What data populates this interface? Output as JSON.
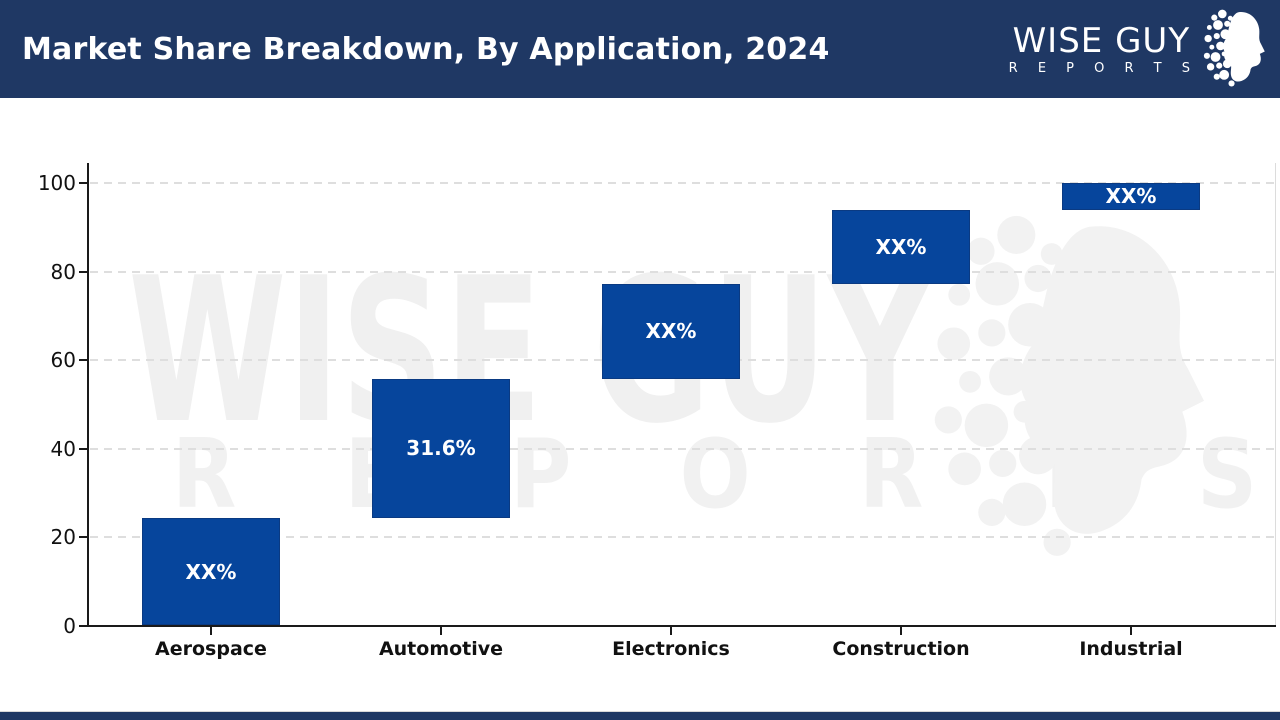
{
  "header": {
    "title": "Market Share Breakdown, By Application, 2024",
    "bg_color": "#1f3864",
    "logo": {
      "line1": "WISE GUY",
      "line2": "R E P O R T S"
    }
  },
  "watermark": {
    "line1": "WISE GUY",
    "line2": "R E P O R T S"
  },
  "chart_data": {
    "type": "bar",
    "subtype": "waterfall",
    "title": "Market Share Breakdown, By Application, 2024",
    "categories": [
      "Aerospace",
      "Automotive",
      "Electronics",
      "Construction",
      "Industrial"
    ],
    "segments": [
      {
        "category": "Aerospace",
        "start": 0,
        "end": 24.2,
        "value": 24.2,
        "displayed_label": "XX%"
      },
      {
        "category": "Automotive",
        "start": 24.2,
        "end": 55.8,
        "value": 31.6,
        "displayed_label": "31.6%"
      },
      {
        "category": "Electronics",
        "start": 55.8,
        "end": 77.2,
        "value": 21.4,
        "displayed_label": "XX%"
      },
      {
        "category": "Construction",
        "start": 77.2,
        "end": 93.9,
        "value": 16.7,
        "displayed_label": "XX%"
      },
      {
        "category": "Industrial",
        "start": 93.9,
        "end": 100.0,
        "value": 6.1,
        "displayed_label": "XX%"
      }
    ],
    "yticks": [
      0,
      20,
      40,
      60,
      80,
      100
    ],
    "ylim": [
      0,
      105
    ],
    "xlabel": "",
    "ylabel": "",
    "bar_color": "#06459c",
    "grid": "horizontal dashed",
    "legend_position": "none"
  },
  "footer": {
    "bg_color": "#1f3864"
  }
}
